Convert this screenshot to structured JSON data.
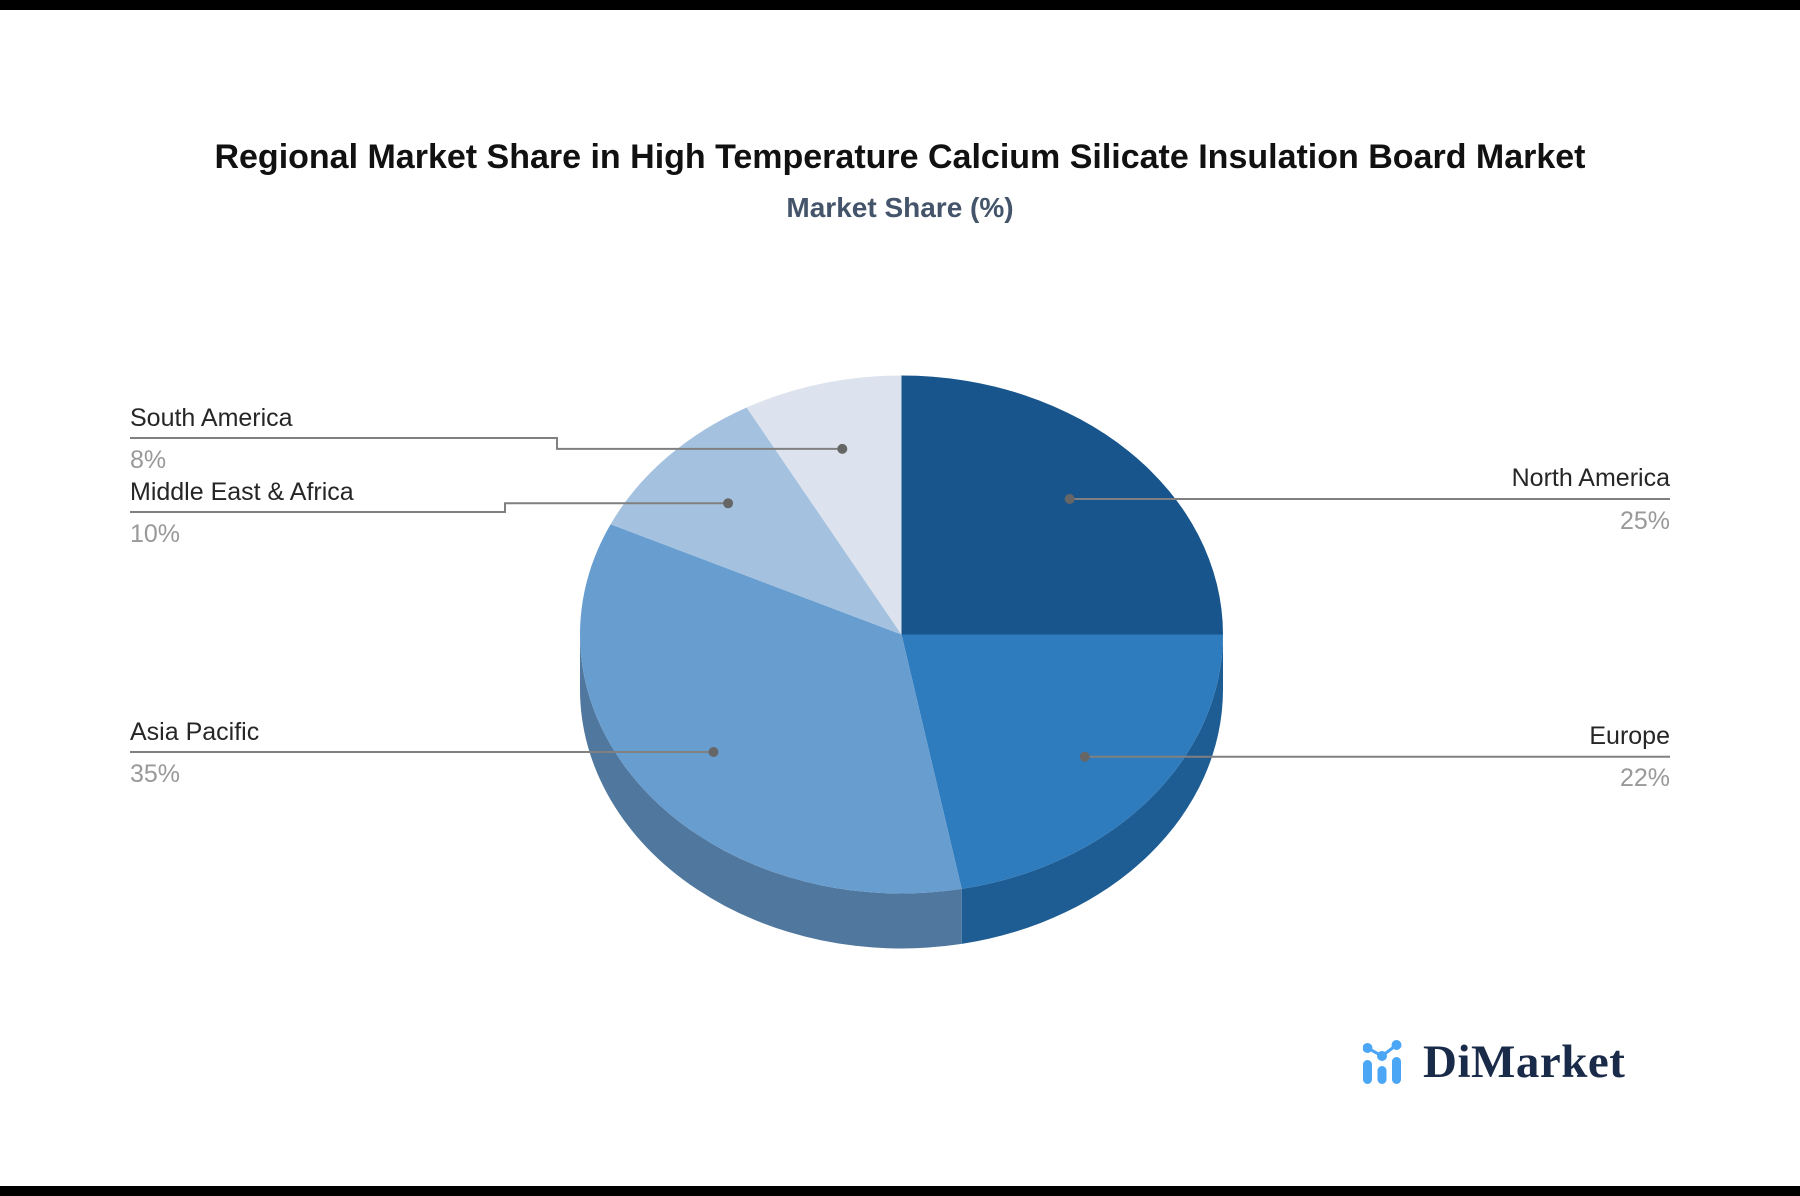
{
  "header": {
    "title": "Regional Market Share in High Temperature Calcium Silicate Insulation Board Market",
    "subtitle": "Market Share (%)",
    "title_color": "#111111",
    "subtitle_color": "#44546A"
  },
  "chart_data": {
    "type": "pie",
    "title": "Regional Market Share in High Temperature Calcium Silicate Insulation Board Market",
    "subtitle": "Market Share (%)",
    "unit": "%",
    "style": "3d-pie",
    "direction": "clockwise",
    "start_angle_deg": 0,
    "legend_position": "callout-labels",
    "slices": [
      {
        "label": "North America",
        "value": 25,
        "display": "25%",
        "color": "#17558C",
        "label_side": "right"
      },
      {
        "label": "Europe",
        "value": 22,
        "display": "22%",
        "color": "#2E7CBE",
        "depth_color": "#1D5D94",
        "label_side": "right"
      },
      {
        "label": "Asia Pacific",
        "value": 35,
        "display": "35%",
        "color": "#689DD0",
        "depth_color": "#50779E",
        "label_side": "left"
      },
      {
        "label": "Middle East & Africa",
        "value": 10,
        "display": "10%",
        "color": "#A4C2DF",
        "label_side": "left"
      },
      {
        "label": "South America",
        "value": 8,
        "display": "8%",
        "color": "#DCE3EE",
        "label_side": "left"
      }
    ],
    "label_color": "#262626",
    "value_color": "#999999",
    "leader_line_color": "#808080",
    "leader_dot_color": "#666666"
  },
  "branding": {
    "name": "DiMarket",
    "text_color": "#1A2B49",
    "icon_color": "#4BA6F5",
    "icon": "bar-and-line-chart-icon"
  }
}
